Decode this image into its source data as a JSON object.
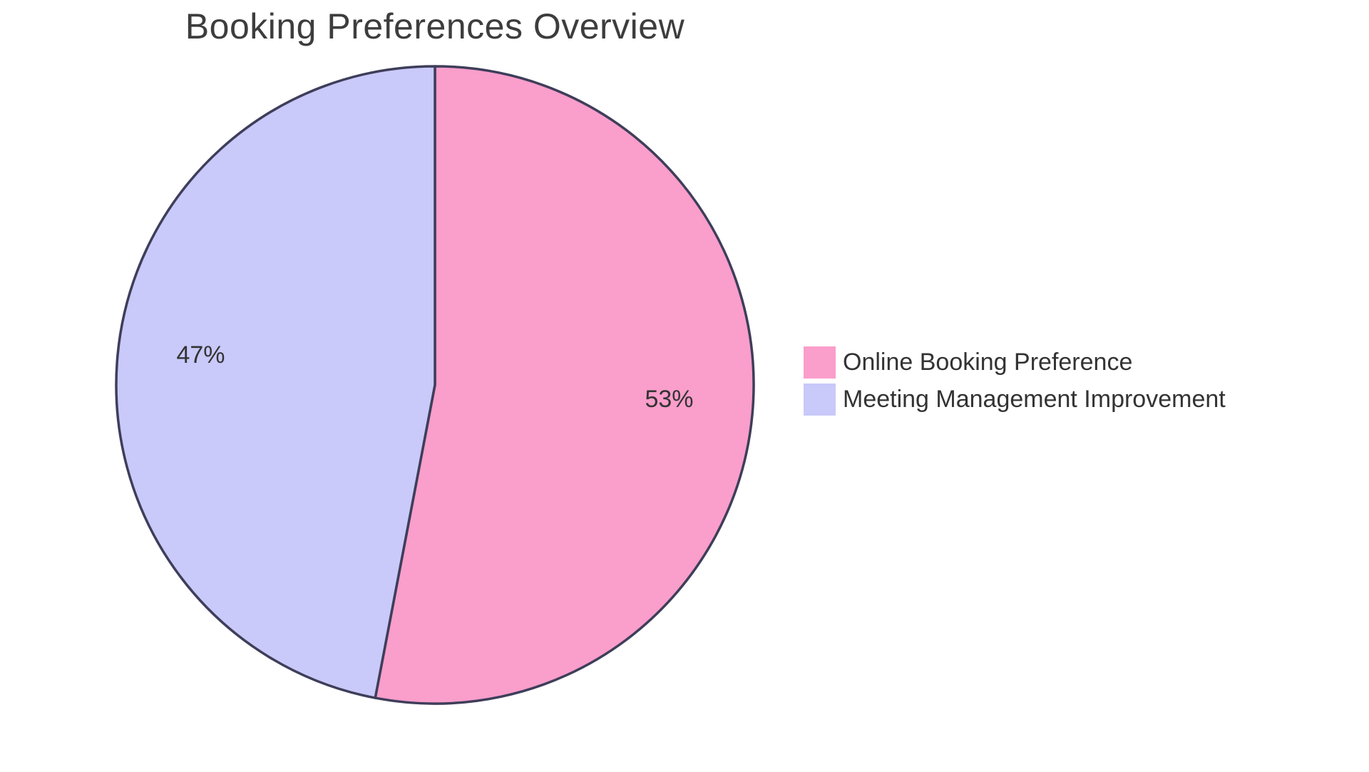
{
  "page": {
    "background": "#FFFFFF"
  },
  "chart_data": {
    "type": "pie",
    "title": "Booking Preferences Overview",
    "slices": [
      {
        "label": "Online Booking Preference",
        "value": 53,
        "percent_label": "53%",
        "color": "#FA9ECB"
      },
      {
        "label": "Meeting Management Improvement",
        "value": 47,
        "percent_label": "47%",
        "color": "#C9C9FA"
      }
    ],
    "start_angle": "12-oclock",
    "direction": "clockwise",
    "slice_border_color": "#3E3E5A",
    "slice_border_width": 3.5,
    "label_color": "#333333",
    "title_color": "#3D3D3D",
    "legend_position": "right",
    "grid": false
  }
}
